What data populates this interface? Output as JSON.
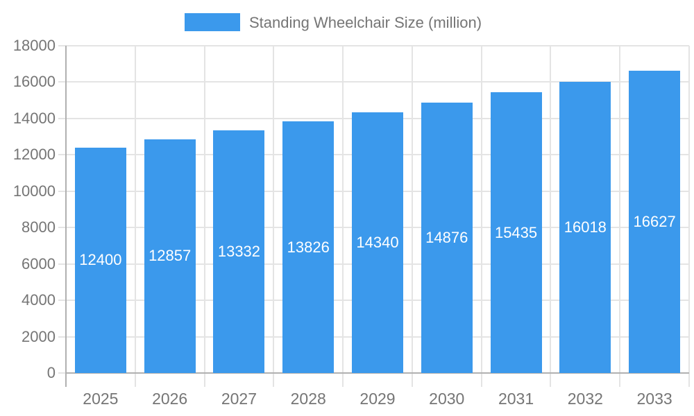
{
  "chart_data": {
    "type": "bar",
    "title": "",
    "legend": {
      "label": "Standing Wheelchair Size (million)",
      "position": "top"
    },
    "categories": [
      "2025",
      "2026",
      "2027",
      "2028",
      "2029",
      "2030",
      "2031",
      "2032",
      "2033"
    ],
    "values": [
      12400,
      12857,
      13332,
      13826,
      14340,
      14876,
      15435,
      16018,
      16627
    ],
    "value_labels": [
      "12400",
      "12857",
      "13332",
      "13826",
      "14340",
      "14876",
      "15435",
      "16018",
      "16627"
    ],
    "xlabel": "",
    "ylabel": "",
    "ylim": [
      0,
      18000
    ],
    "yticks": [
      0,
      2000,
      4000,
      6000,
      8000,
      10000,
      12000,
      14000,
      16000,
      18000
    ],
    "grid": "horizontal and vertical category boundaries",
    "legend_position": "top-center",
    "colors": {
      "bar": "#3B99EC",
      "bar_label_text": "#FFFFFF",
      "axis": "#B0B0B0",
      "gridline": "#E4E4E4",
      "tick_label_text": "#757575",
      "legend_text": "#757575",
      "background": "#FFFFFF"
    }
  }
}
